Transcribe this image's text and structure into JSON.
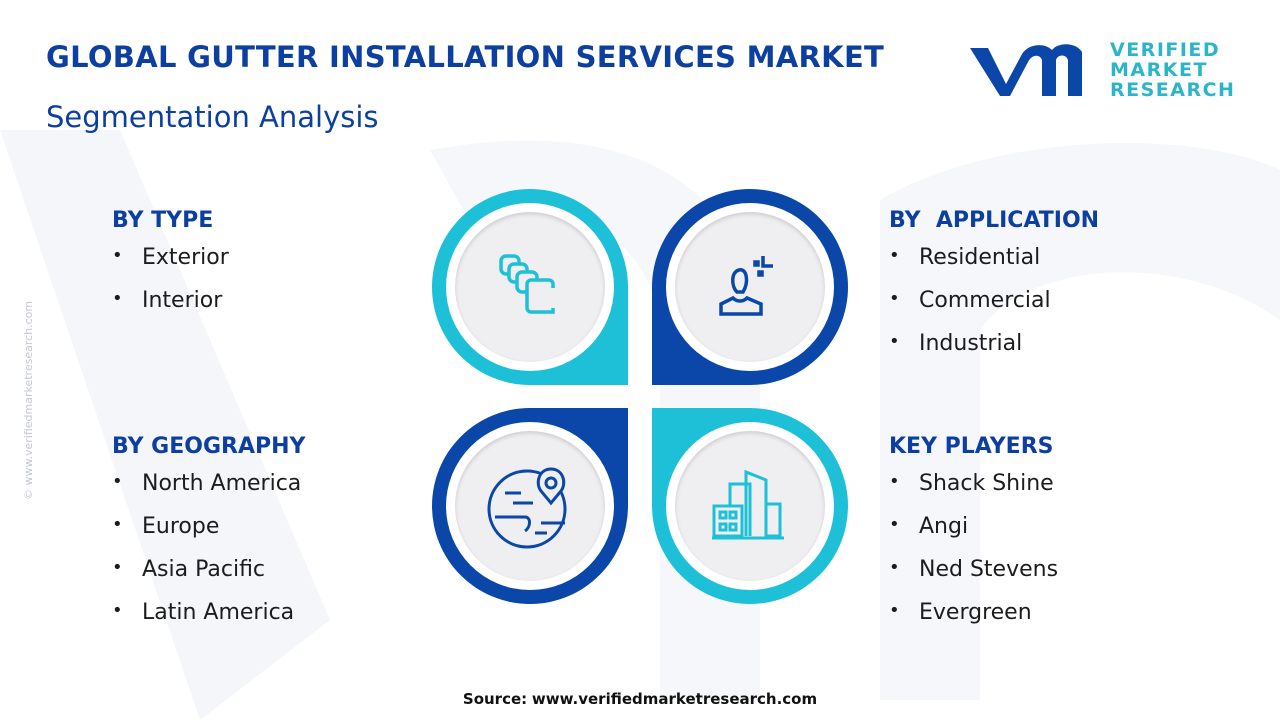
{
  "header": {
    "title": "GLOBAL GUTTER INSTALLATION SERVICES MARKET",
    "subtitle": "Segmentation Analysis"
  },
  "logo": {
    "line1": "VERIFIED",
    "line2": "MARKET",
    "line3": "RESEARCH",
    "registered": "®"
  },
  "side_watermark": "© www.verifiedmarketresearch.com",
  "colors": {
    "dark_blue": "#0a47a8",
    "cyan": "#1ec0d8",
    "heading": "#0d3fa0"
  },
  "segments": {
    "type": {
      "heading": "BY TYPE",
      "items": [
        "Exterior",
        "Interior"
      ],
      "icon": "stacked-squares-icon"
    },
    "application": {
      "heading": "BY  APPLICATION",
      "items": [
        "Residential",
        "Commercial",
        "Industrial"
      ],
      "icon": "person-icon"
    },
    "geography": {
      "heading": "BY GEOGRAPHY",
      "items": [
        "North America",
        "Europe",
        "Asia Pacific",
        "Latin America"
      ],
      "icon": "globe-pin-icon"
    },
    "players": {
      "heading": "KEY PLAYERS",
      "items": [
        "Shack Shine",
        "Angi",
        "Ned Stevens",
        "Evergreen"
      ],
      "icon": "buildings-icon"
    }
  },
  "bullet": "•",
  "source": {
    "label": "Source:",
    "url": "www.verifiedmarketresearch.com"
  }
}
